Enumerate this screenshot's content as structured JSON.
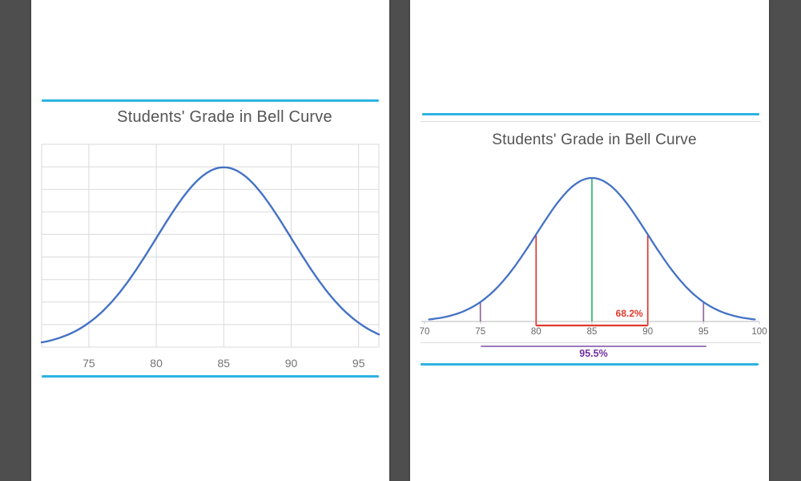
{
  "canvas": {
    "background": "#4e4e4e",
    "panel_background": "#ffffff",
    "accent_line_color": "#2eb3e2",
    "hairline_color": "#dcdcdc",
    "title_color": "#545454"
  },
  "left_slide": {
    "title": "Students' Grade in Bell Curve"
  },
  "right_slide": {
    "title": "Students' Grade in Bell Curve"
  },
  "chart_data": [
    {
      "id": "left-bell-curve",
      "type": "line",
      "title": "Students' Grade in Bell Curve",
      "curve": "normal-distribution-pdf",
      "mean": 85,
      "std_dev": 5,
      "x_range": [
        71.5,
        96.5
      ],
      "x_ticks": [
        "75",
        "80",
        "85",
        "90",
        "95"
      ],
      "x_tick_values": [
        75,
        80,
        85,
        90,
        95
      ],
      "y_range": [
        0,
        0.09
      ],
      "y_gridline_count": 9,
      "y_axis_labels_visible": false,
      "grid": true,
      "legend": "none",
      "colors": {
        "curve": "#4472c4",
        "grid": "#dadada",
        "tick_label": "#737373"
      }
    },
    {
      "id": "right-bell-curve",
      "type": "line",
      "title": "Students' Grade in Bell Curve",
      "curve": "normal-distribution-pdf",
      "mean": 85,
      "std_dev": 5,
      "x_range": [
        70,
        100
      ],
      "curve_x_range": [
        70.4,
        99.6
      ],
      "x_ticks": [
        "70",
        "75",
        "80",
        "85",
        "90",
        "95",
        "100"
      ],
      "x_tick_values": [
        70,
        75,
        80,
        85,
        90,
        95,
        100
      ],
      "grid": false,
      "legend": "none",
      "colors": {
        "curve": "#4472c4",
        "axis": "#c8c8c8",
        "tick_label": "#666666"
      },
      "markers": [
        {
          "x": 85,
          "role": "mean",
          "color": "#2eb873",
          "to": "axis"
        },
        {
          "x": 80,
          "role": "minus-1-sigma",
          "color": "#e03a2f",
          "to": "bracket"
        },
        {
          "x": 90,
          "role": "plus-1-sigma",
          "color": "#e03a2f",
          "to": "bracket"
        },
        {
          "x": 75,
          "role": "minus-2-sigma",
          "color": "#93619e",
          "to": "axis"
        },
        {
          "x": 95,
          "role": "plus-2-sigma",
          "color": "#93619e",
          "to": "axis"
        }
      ],
      "brackets": [
        {
          "from": 80,
          "to": 90,
          "label": "68.2%",
          "color": "#e03a2f",
          "location": "in-chart"
        },
        {
          "from": 75,
          "to": 95,
          "label": "95.5%",
          "line_color": "#9b79ba",
          "label_color": "#7030a0",
          "location": "below-chart"
        }
      ]
    }
  ]
}
